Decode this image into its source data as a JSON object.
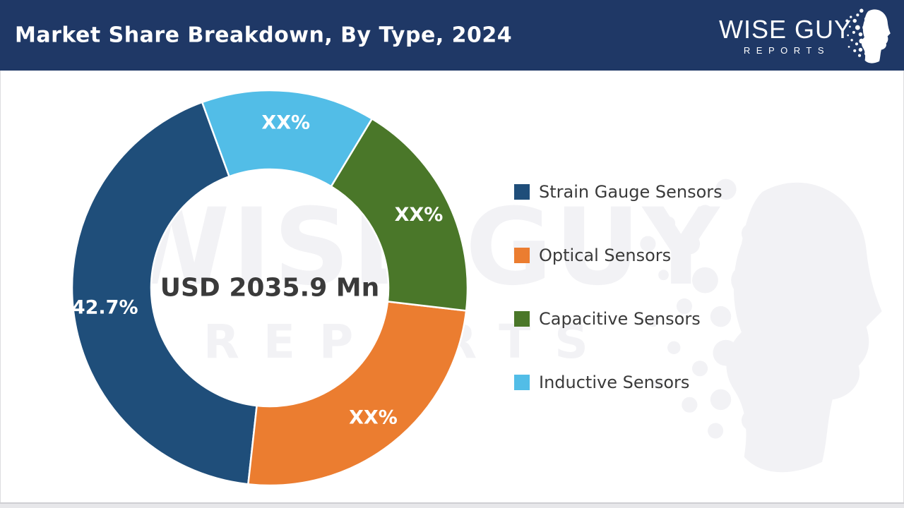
{
  "header": {
    "title": "Market Share Breakdown, By Type, 2024",
    "logo": {
      "line1": "WISE GUY",
      "line2": "REPORTS"
    }
  },
  "watermark": {
    "line1": "WISE GUY",
    "line2": "REPORTS"
  },
  "chart_data": {
    "type": "pie",
    "subtype": "donut",
    "title": "Market Share Breakdown, By Type, 2024",
    "center_label": "USD 2035.9 Mn",
    "start_angle_deg": 110,
    "direction": "counterclockwise",
    "inner_radius_ratio": 0.6,
    "legend_position": "right",
    "segments": [
      {
        "label": "Strain Gauge Sensors",
        "value_pct": 42.7,
        "display": "42.7%",
        "color": "#1F4E7A"
      },
      {
        "label": "Optical Sensors",
        "value_pct": 24.9,
        "display": "XX%",
        "color": "#EB7D30"
      },
      {
        "label": "Capacitive Sensors",
        "value_pct": 18.2,
        "display": "XX%",
        "color": "#4A7729"
      },
      {
        "label": "Inductive Sensors",
        "value_pct": 14.2,
        "display": "XX%",
        "color": "#52BDE7"
      }
    ]
  },
  "colors": {
    "header_bg": "#1F3866",
    "center_text": "#3a3a3a",
    "watermark": "#f2f2f5"
  }
}
